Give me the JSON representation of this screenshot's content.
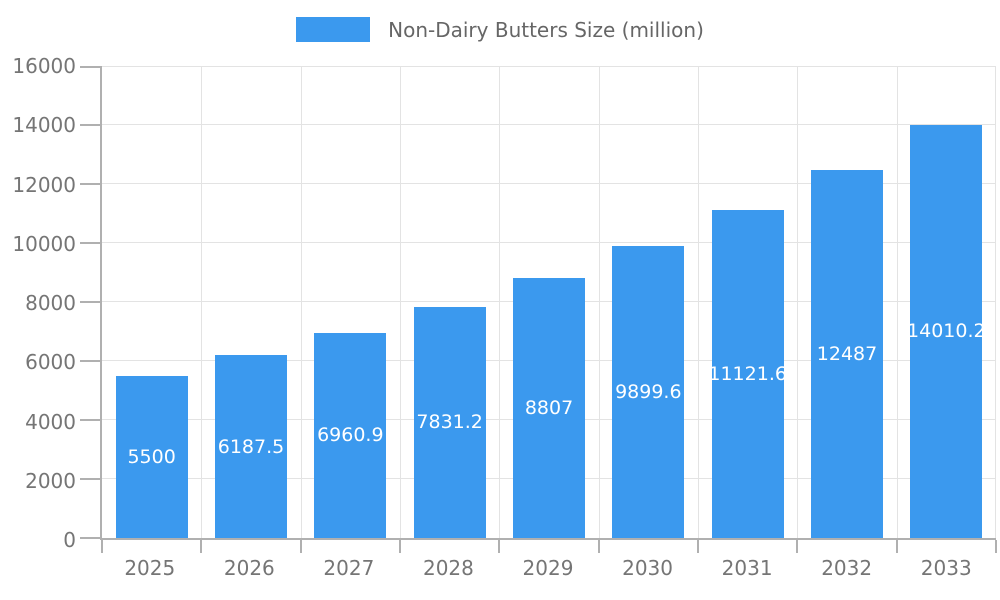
{
  "chart_data": {
    "type": "bar",
    "title": "",
    "series_name": "Non-Dairy Butters Size (million)",
    "legend_position": "top",
    "categories": [
      "2025",
      "2026",
      "2027",
      "2028",
      "2029",
      "2030",
      "2031",
      "2032",
      "2033"
    ],
    "values": [
      5500,
      6187.5,
      6960.9,
      7831.2,
      8807,
      9899.6,
      11121.6,
      12487,
      14010.2
    ],
    "bar_labels": [
      "5500",
      "6187.5",
      "6960.9",
      "7831.2",
      "8807",
      "9899.6",
      "11121.6",
      "12487",
      "14010.2"
    ],
    "xlabel": "",
    "ylabel": "",
    "ylim": [
      0,
      16000
    ],
    "y_ticks": [
      0,
      2000,
      4000,
      6000,
      8000,
      10000,
      12000,
      14000,
      16000
    ],
    "grid": true,
    "colors": {
      "bar": "#3B99EE",
      "grid": "#E3E3E3",
      "axis": "#B0B0B0",
      "tick_text": "#757575",
      "legend_text": "#666666",
      "bar_label_text": "#FFFFFF",
      "background": "#FFFFFF"
    }
  }
}
